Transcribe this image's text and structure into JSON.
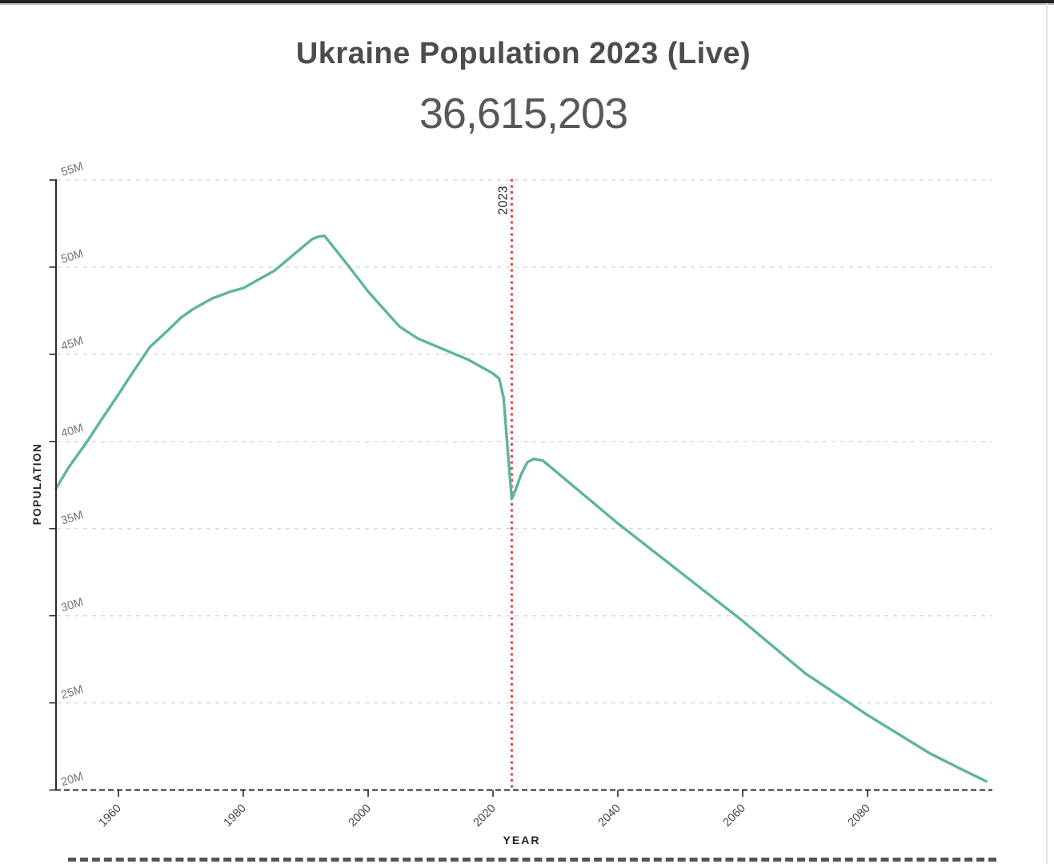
{
  "page": {
    "title": "Ukraine Population 2023 (Live)",
    "live_counter": "36,615,203"
  },
  "chart_data": {
    "type": "line",
    "title": "Ukraine Population 2023 (Live)",
    "subtitle_live_value": "36,615,203",
    "xlabel": "YEAR",
    "ylabel": "POPULATION",
    "xlim": [
      1950,
      2100
    ],
    "ylim": [
      20,
      55
    ],
    "grid": true,
    "legend_position": "none",
    "x_ticks": [
      1960,
      1980,
      2000,
      2020,
      2040,
      2060,
      2080
    ],
    "y_ticks": [
      20,
      25,
      30,
      35,
      40,
      45,
      50,
      55
    ],
    "y_tick_labels": [
      "20M",
      "25M",
      "30M",
      "35M",
      "40M",
      "45M",
      "50M",
      "55M"
    ],
    "marker": {
      "x": 2023,
      "label": "2023",
      "color": "#f23d35",
      "style": "dotted-vertical-line"
    },
    "line_color": "#5fb49e",
    "grid_color": "#dbdbdb",
    "axis_color": "#2b2b2b",
    "y_tick_label_color": "#757575",
    "x_tick_label_color": "#454545",
    "series": [
      {
        "x": [
          1950,
          1952,
          1955,
          1957,
          1960,
          1962,
          1965,
          1968,
          1970,
          1972,
          1975,
          1978,
          1980,
          1982,
          1985,
          1988,
          1990,
          1991,
          1992,
          1993,
          1995,
          1997,
          2000,
          2002,
          2005,
          2008,
          2010,
          2012,
          2014,
          2016,
          2018,
          2020,
          2021,
          2021.7,
          2022.3,
          2023,
          2023.7,
          2024.5,
          2025.5,
          2026.5,
          2028,
          2030,
          2033,
          2035,
          2040,
          2045,
          2050,
          2055,
          2060,
          2065,
          2070,
          2075,
          2080,
          2085,
          2090,
          2095,
          2099
        ],
        "y_millions": [
          37.3,
          38.5,
          40.0,
          41.1,
          42.7,
          43.8,
          45.4,
          46.4,
          47.1,
          47.6,
          48.2,
          48.6,
          48.8,
          49.2,
          49.8,
          50.7,
          51.3,
          51.6,
          51.75,
          51.8,
          50.9,
          50.0,
          48.6,
          47.8,
          46.6,
          45.9,
          45.6,
          45.3,
          45.0,
          44.7,
          44.3,
          43.9,
          43.6,
          42.5,
          39.8,
          36.7,
          37.3,
          38.1,
          38.8,
          39.0,
          38.9,
          38.3,
          37.4,
          36.8,
          35.3,
          33.9,
          32.5,
          31.1,
          29.7,
          28.2,
          26.7,
          25.5,
          24.3,
          23.2,
          22.1,
          21.2,
          20.5
        ]
      }
    ]
  }
}
